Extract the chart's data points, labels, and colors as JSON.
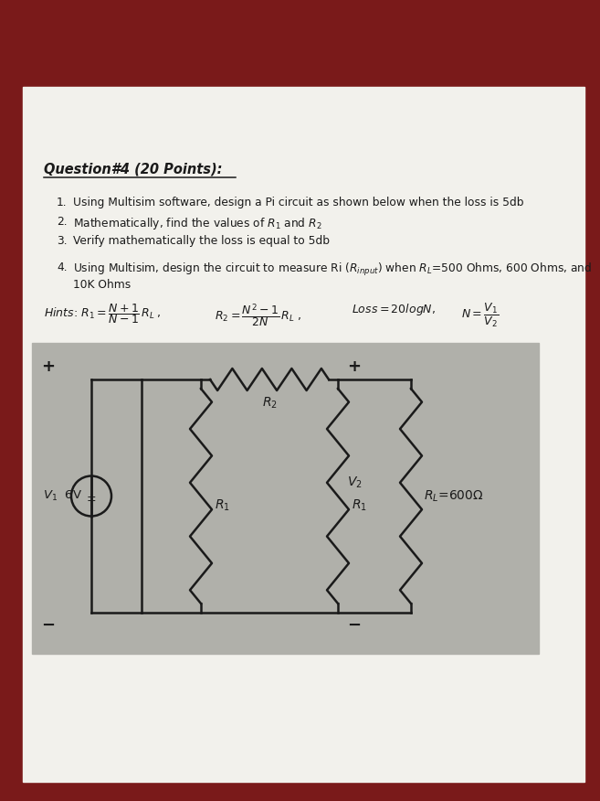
{
  "bg_color": "#7a1a1a",
  "paper_color": "#f2f1ec",
  "circuit_color": "#b0b0aa",
  "title": "Question#4 (20 Points):",
  "item1": "Using Multisim software, design a Pi circuit as shown below when the loss is 5db",
  "item2": "Mathematically, find the values of $R_1$ and $R_2$",
  "item3": "Verify mathematically the loss is equal to 5db",
  "item4a": "Using Multisim, design the circuit to measure Ri ($R_{input}$) when $R_L$=500 Ohms, 600 Ohms, and",
  "item4b": "10K Ohms",
  "wire_color": "#1a1a1a",
  "text_color": "#1a1a1a"
}
